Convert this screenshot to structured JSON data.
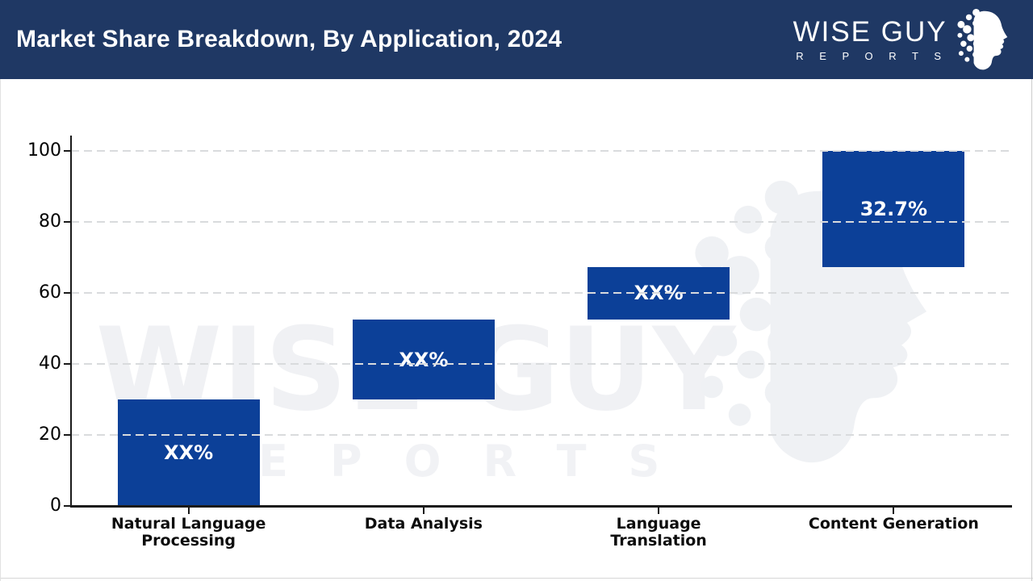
{
  "header": {
    "title": "Market Share Breakdown, By Application, 2024",
    "bg_color": "#1f3864",
    "logo": {
      "line1": "WISE GUY",
      "line2": "R E P O R T S"
    }
  },
  "watermark": {
    "line1": "WISE GUY",
    "line2": "REPORTS"
  },
  "chart_data": {
    "type": "bar",
    "subtype": "floating-waterfall",
    "title": "Market Share Breakdown, By Application, 2024",
    "categories": [
      "Natural Language\nProcessing",
      "Data Analysis",
      "Language\nTranslation",
      "Content Generation"
    ],
    "segments": [
      {
        "category": "Natural Language Processing",
        "start": 0,
        "end": 30,
        "label": "XX%"
      },
      {
        "category": "Data Analysis",
        "start": 30,
        "end": 52.5,
        "label": "XX%"
      },
      {
        "category": "Language Translation",
        "start": 52.5,
        "end": 67.3,
        "label": "XX%"
      },
      {
        "category": "Content Generation",
        "start": 67.3,
        "end": 100,
        "label": "32.7%"
      }
    ],
    "yticks": [
      0,
      20,
      40,
      60,
      80,
      100
    ],
    "ylim": [
      0,
      104
    ],
    "grid": "dashed-horizontal",
    "legend": "none",
    "bar_color": "#0c4098",
    "bar_label_color": "#ffffff",
    "xlabel": "",
    "ylabel": ""
  }
}
